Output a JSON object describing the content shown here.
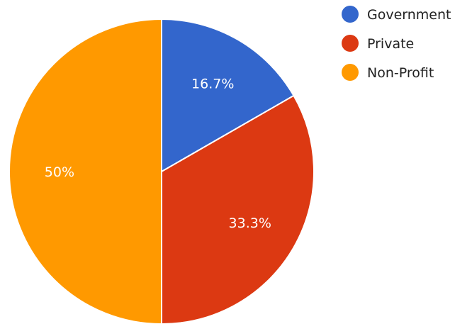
{
  "chart_data": {
    "type": "pie",
    "slices": [
      {
        "label": "Government",
        "value": 16.7,
        "display": "16.7%",
        "color": "#3366cc"
      },
      {
        "label": "Private",
        "value": 33.3,
        "display": "33.3%",
        "color": "#dc3912"
      },
      {
        "label": "Non-Profit",
        "value": 50,
        "display": "50%",
        "color": "#ff9900"
      }
    ],
    "legend_position": "top-right",
    "start_angle_deg": 0,
    "direction": "clockwise"
  }
}
